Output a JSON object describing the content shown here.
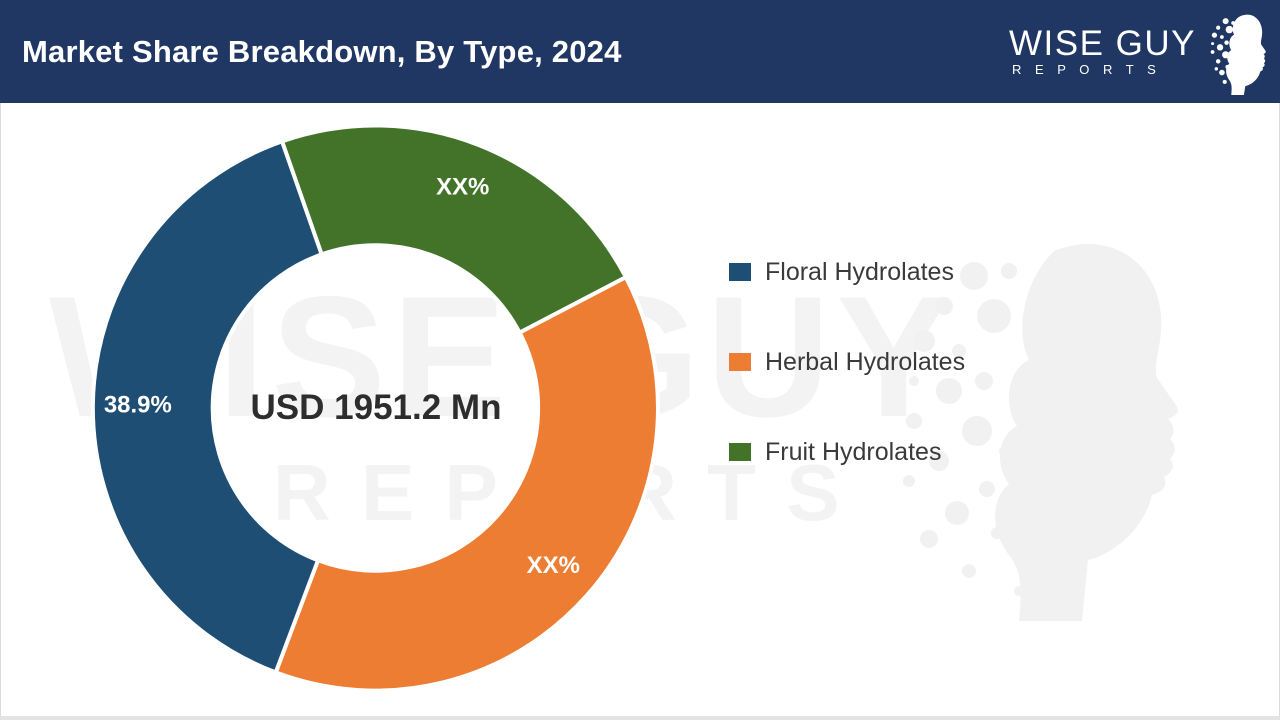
{
  "header": {
    "title": "Market Share Breakdown, By Type, 2024",
    "logo": {
      "line1": "WISE GUY",
      "line2": "R E P O R T S"
    }
  },
  "watermark": {
    "line1": "WISE GUY",
    "line2": "R E P O R T S"
  },
  "chart_data": {
    "type": "pie",
    "subtype": "donut",
    "title": "Market Share Breakdown, By Type, 2024",
    "center_label": "USD 1951.2 Mn",
    "legend_position": "right",
    "start_angle_deg": -19.3,
    "legend": [
      {
        "label": "Floral Hydrolates",
        "color": "#1F4E74"
      },
      {
        "label": "Herbal Hydrolates",
        "color": "#EC7D33"
      },
      {
        "label": "Fruit Hydrolates",
        "color": "#437329"
      }
    ],
    "slices": [
      {
        "series": "Fruit Hydrolates",
        "value_pct": 22.7,
        "label": "XX%",
        "color": "#437329"
      },
      {
        "series": "Herbal Hydrolates",
        "value_pct": 38.4,
        "label": "XX%",
        "color": "#EC7D33"
      },
      {
        "series": "Floral Hydrolates",
        "value_pct": 38.9,
        "label": "38.9%",
        "color": "#1F4E74"
      }
    ]
  }
}
